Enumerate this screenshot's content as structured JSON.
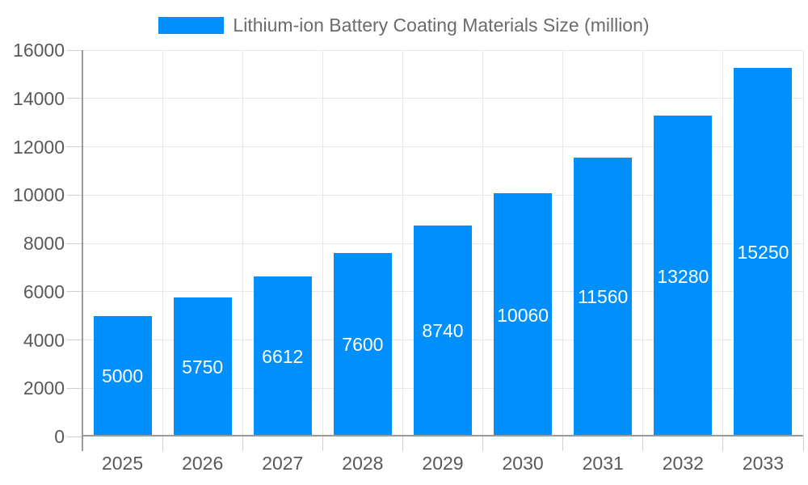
{
  "chart_data": {
    "type": "bar",
    "title": "Lithium-ion Battery Coating Materials Size (million)",
    "categories": [
      "2025",
      "2026",
      "2027",
      "2028",
      "2029",
      "2030",
      "2031",
      "2032",
      "2033"
    ],
    "values": [
      5000,
      5750,
      6612,
      7600,
      8740,
      10060,
      11560,
      13280,
      15250
    ],
    "xlabel": "",
    "ylabel": "",
    "ylim": [
      0,
      16000
    ],
    "yticks": [
      0,
      2000,
      4000,
      6000,
      8000,
      10000,
      12000,
      14000,
      16000
    ],
    "ytick_labels": [
      "0",
      "2000",
      "4000",
      "6000",
      "8000",
      "10000",
      "12000",
      "14000",
      "16000"
    ],
    "grid": true,
    "legend_position": "top-center",
    "bar_value_labels": [
      "5000",
      "5750",
      "6612",
      "7600",
      "8740",
      "10060",
      "11560",
      "13280",
      "15250"
    ]
  },
  "legend": {
    "label": "Lithium-ion Battery Coating Materials Size (million)"
  },
  "colors": {
    "bar": "#008ffb",
    "bar_label_text": "#ffffff",
    "axis_line": "#9a9a9a",
    "tick": "#d0d0d0",
    "gridline": "#e7e7e7",
    "axis_label_text": "#58595b",
    "title_text": "#6b6b6b",
    "background": "#ffffff"
  }
}
